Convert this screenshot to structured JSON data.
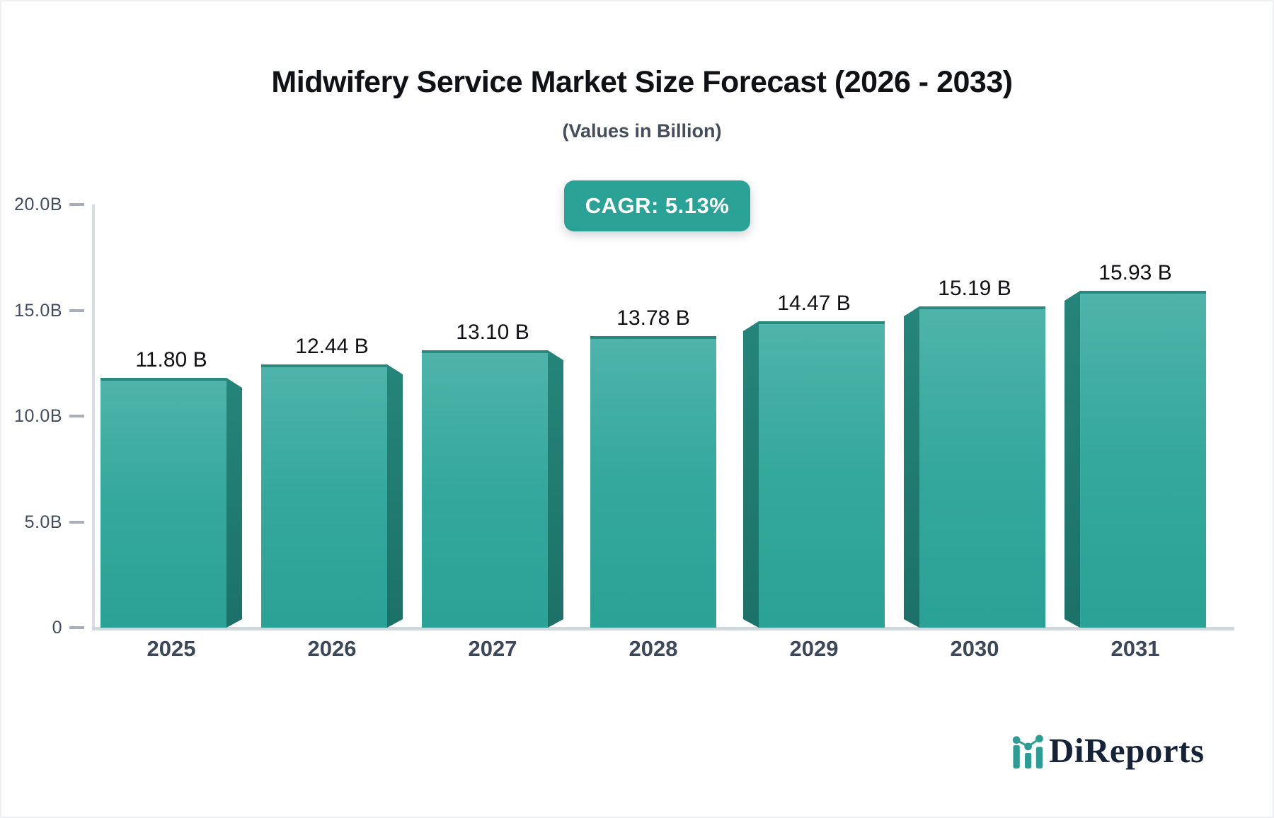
{
  "header": {
    "title": "Midwifery Service Market Size Forecast (2026 - 2033)",
    "subtitle": "(Values in Billion)"
  },
  "chart_data": {
    "type": "bar",
    "title": "Midwifery Service Market Size Forecast (2026 - 2033)",
    "subtitle": "(Values in Billion)",
    "annotation": "CAGR: 5.13%",
    "categories": [
      "2025",
      "2026",
      "2027",
      "2028",
      "2029",
      "2030",
      "2031"
    ],
    "values": [
      11.8,
      12.44,
      13.1,
      13.78,
      14.47,
      15.19,
      15.93
    ],
    "value_labels": [
      "11.80 B",
      "12.44 B",
      "13.10 B",
      "13.78 B",
      "14.47 B",
      "15.19 B",
      "15.93 B"
    ],
    "unit": "Billion",
    "ylim": [
      0,
      20
    ],
    "ytick_values": [
      20,
      15,
      10,
      5,
      0
    ],
    "ytick_labels": [
      "20.0B",
      "15.0B",
      "10.0B",
      "5.0B",
      "0"
    ],
    "grid": false,
    "legend_position": "none",
    "effect": "3d-bevel",
    "bar_color": "#2fa99d",
    "bar_side_color": "#1e7b71"
  },
  "colors": {
    "accent_teal": "#2aa396",
    "badge_text": "#ffffff",
    "axis_line": "#d5d9e0",
    "tick": "#a9aeb9",
    "title_text": "#0f1115",
    "subtitle_text": "#454d5a",
    "axis_label_text": "#414c5e",
    "logo_navy": "#152238",
    "logo_teal": "#2d9c93"
  },
  "footer": {
    "logo_text": "DiReports"
  }
}
